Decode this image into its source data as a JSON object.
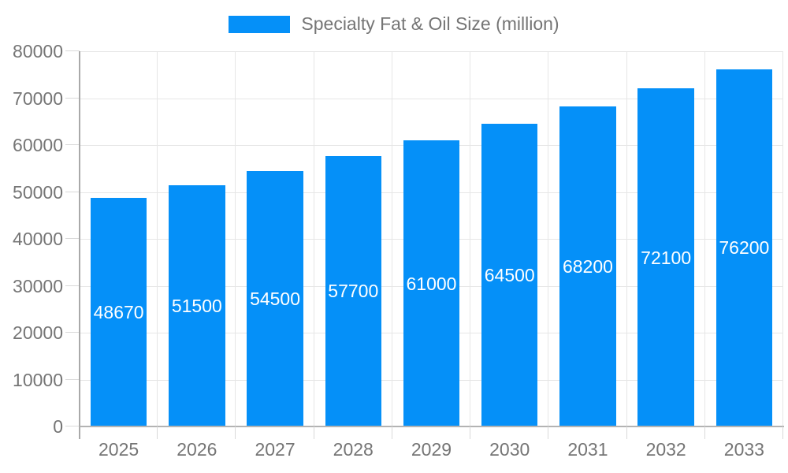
{
  "chart_data": {
    "type": "bar",
    "title": "Specialty Fat & Oil Size (million)",
    "legend": {
      "label": "Specialty Fat & Oil Size (million)",
      "position": "top-center"
    },
    "categories": [
      "2025",
      "2026",
      "2027",
      "2028",
      "2029",
      "2030",
      "2031",
      "2032",
      "2033"
    ],
    "series": [
      {
        "name": "Specialty Fat & Oil Size (million)",
        "values": [
          48670,
          51500,
          54500,
          57700,
          61000,
          64500,
          68200,
          72100,
          76200
        ]
      }
    ],
    "data_labels": {
      "visible": true,
      "placement": "inside-center",
      "values": [
        "48670",
        "51500",
        "54500",
        "57700",
        "61000",
        "64500",
        "68200",
        "72100",
        "76200"
      ]
    },
    "xlabel": "",
    "ylabel": "",
    "ylim": [
      0,
      80000
    ],
    "yticks": [
      0,
      10000,
      20000,
      30000,
      40000,
      50000,
      60000,
      70000,
      80000
    ],
    "grid": true,
    "colors": {
      "bar": "#0590F8",
      "bar_label_text": "#FFFFFF",
      "axis_text": "#757575",
      "gridline": "#E6E6E6",
      "tick": "#D9D9D9",
      "axis_line": "#B3B3B3",
      "background": "#FFFFFF"
    }
  }
}
